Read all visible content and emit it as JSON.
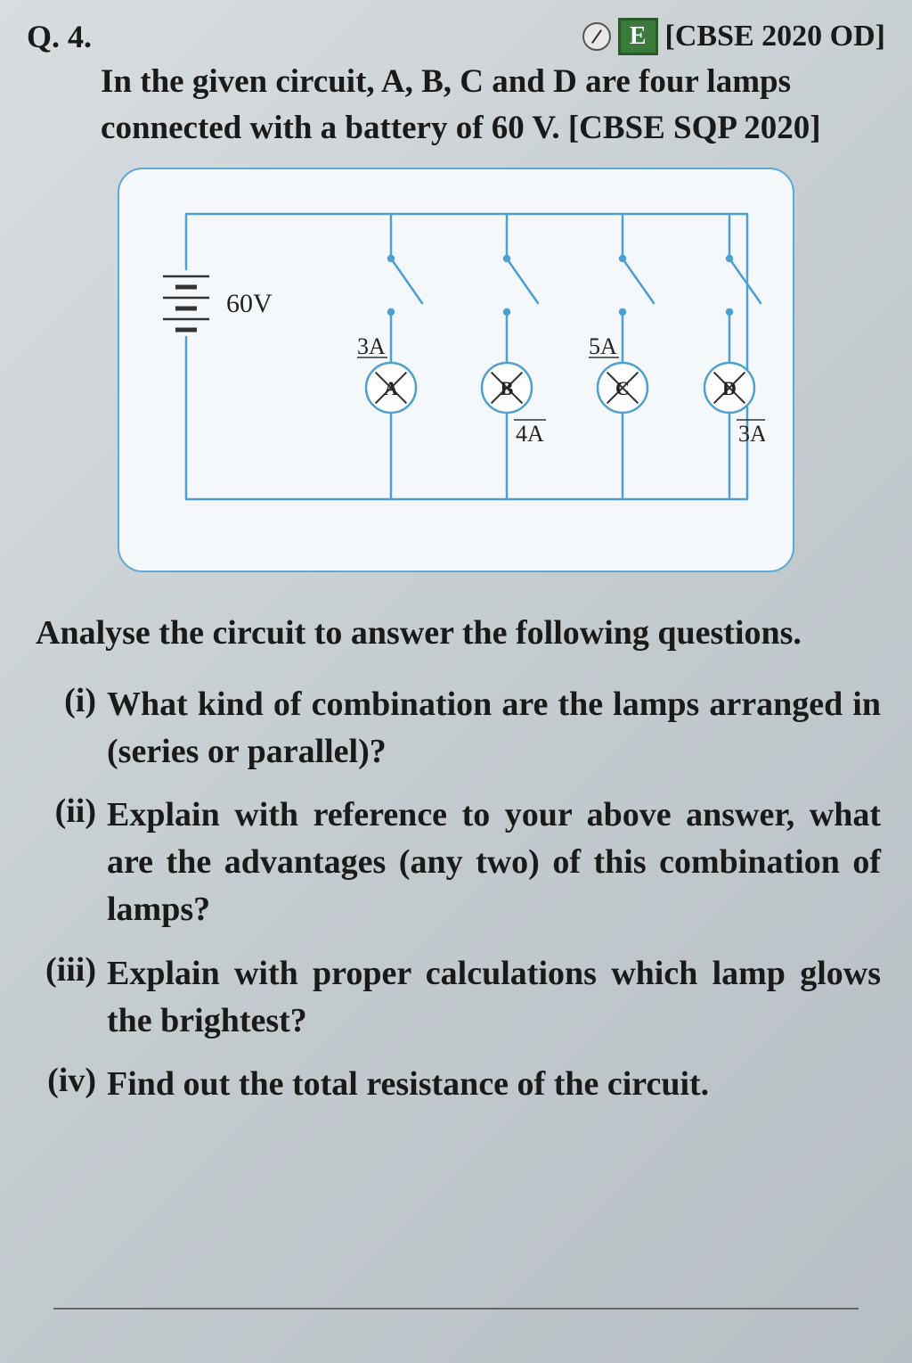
{
  "question": {
    "label": "Q. 4.",
    "badge_letter": "E",
    "top_tag": "[CBSE 2020 OD]",
    "text_line1": "In the given circuit, A, B, C and D are four lamps",
    "text_line2": "connected with a battery of 60 V.",
    "trailing_tag": "[CBSE SQP 2020]"
  },
  "circuit": {
    "battery_label": "60V",
    "lamps": [
      {
        "id": "A",
        "current_label": "3A",
        "label_pos": "top"
      },
      {
        "id": "B",
        "current_label": "4A",
        "label_pos": "bottom"
      },
      {
        "id": "C",
        "current_label": "5A",
        "label_pos": "top"
      },
      {
        "id": "D",
        "current_label": "3A",
        "label_pos": "bottom"
      }
    ],
    "colors": {
      "wire": "#4da0cf",
      "lamp_stroke": "#4da0cf",
      "lamp_cross": "#333",
      "text": "#222",
      "border": "#5aa9d6",
      "bg": "#f5f8fa"
    },
    "wire_width": 2.5,
    "font_size_labels": 26,
    "font_size_lamp_id": 22
  },
  "analyse_text": "Analyse the circuit to answer the following questions.",
  "items": [
    {
      "num": "(i)",
      "text": "What kind of combination are the lamps arranged in (series or parallel)?"
    },
    {
      "num": "(ii)",
      "text": "Explain with reference to your above answer, what are the advantages (any two) of this combination of lamps?"
    },
    {
      "num": "(iii)",
      "text": "Explain with proper calculations which lamp glows the brightest?"
    },
    {
      "num": "(iv)",
      "text": "Find out the total resistance of the circuit."
    }
  ]
}
